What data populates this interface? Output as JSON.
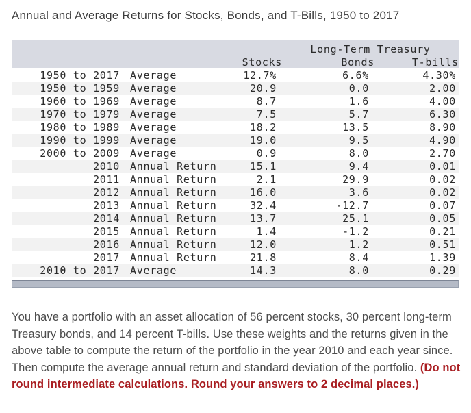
{
  "title": "Annual and Average Returns for Stocks, Bonds, and T-Bills, 1950 to 2017",
  "table": {
    "header": {
      "group_label": "Long-Term Treasury",
      "stocks": "Stocks",
      "bonds": "Bonds",
      "tbills": "T-bills"
    },
    "rows": [
      {
        "period": "1950 to 2017",
        "label": "Average",
        "stocks": "12.7%",
        "bonds": "6.6%",
        "tbills": "4.30%"
      },
      {
        "period": "1950 to 1959",
        "label": "Average",
        "stocks": "20.9",
        "bonds": "0.0",
        "tbills": "2.00"
      },
      {
        "period": "1960 to 1969",
        "label": "Average",
        "stocks": "8.7",
        "bonds": "1.6",
        "tbills": "4.00"
      },
      {
        "period": "1970 to 1979",
        "label": "Average",
        "stocks": "7.5",
        "bonds": "5.7",
        "tbills": "6.30"
      },
      {
        "period": "1980 to 1989",
        "label": "Average",
        "stocks": "18.2",
        "bonds": "13.5",
        "tbills": "8.90"
      },
      {
        "period": "1990 to 1999",
        "label": "Average",
        "stocks": "19.0",
        "bonds": "9.5",
        "tbills": "4.90"
      },
      {
        "period": "2000 to 2009",
        "label": "Average",
        "stocks": "0.9",
        "bonds": "8.0",
        "tbills": "2.70"
      },
      {
        "period": "2010",
        "label": "Annual Return",
        "stocks": "15.1",
        "bonds": "9.4",
        "tbills": "0.01"
      },
      {
        "period": "2011",
        "label": "Annual Return",
        "stocks": "2.1",
        "bonds": "29.9",
        "tbills": "0.02"
      },
      {
        "period": "2012",
        "label": "Annual Return",
        "stocks": "16.0",
        "bonds": "3.6",
        "tbills": "0.02"
      },
      {
        "period": "2013",
        "label": "Annual Return",
        "stocks": "32.4",
        "bonds": "-12.7",
        "tbills": "0.07"
      },
      {
        "period": "2014",
        "label": "Annual Return",
        "stocks": "13.7",
        "bonds": "25.1",
        "tbills": "0.05"
      },
      {
        "period": "2015",
        "label": "Annual Return",
        "stocks": "1.4",
        "bonds": "-1.2",
        "tbills": "0.21"
      },
      {
        "period": "2016",
        "label": "Annual Return",
        "stocks": "12.0",
        "bonds": "1.2",
        "tbills": "0.51"
      },
      {
        "period": "2017",
        "label": "Annual Return",
        "stocks": "21.8",
        "bonds": "8.4",
        "tbills": "1.39"
      },
      {
        "period": "2010 to 2017",
        "label": "Average",
        "stocks": "14.3",
        "bonds": "8.0",
        "tbills": "0.29"
      }
    ]
  },
  "question": {
    "text_before": "You have a portfolio with an asset allocation of 56 percent stocks, 30 percent long-term Treasury bonds, and 14 percent T-bills. Use these weights and the returns given in the above table to compute the return of the portfolio in the year 2010 and each year since. Then compute the average annual return and standard deviation of the portfolio. ",
    "text_emphasis": "(Do not round intermediate calculations. Round your answers to 2 decimal places.)"
  },
  "colors": {
    "header_bg": "#d8dae2",
    "row_alt_bg": "#f2f2f2",
    "emphasis_red": "#a91e22",
    "scrollbar_fill": "#b4bac6",
    "scrollbar_border": "#7d8595"
  }
}
